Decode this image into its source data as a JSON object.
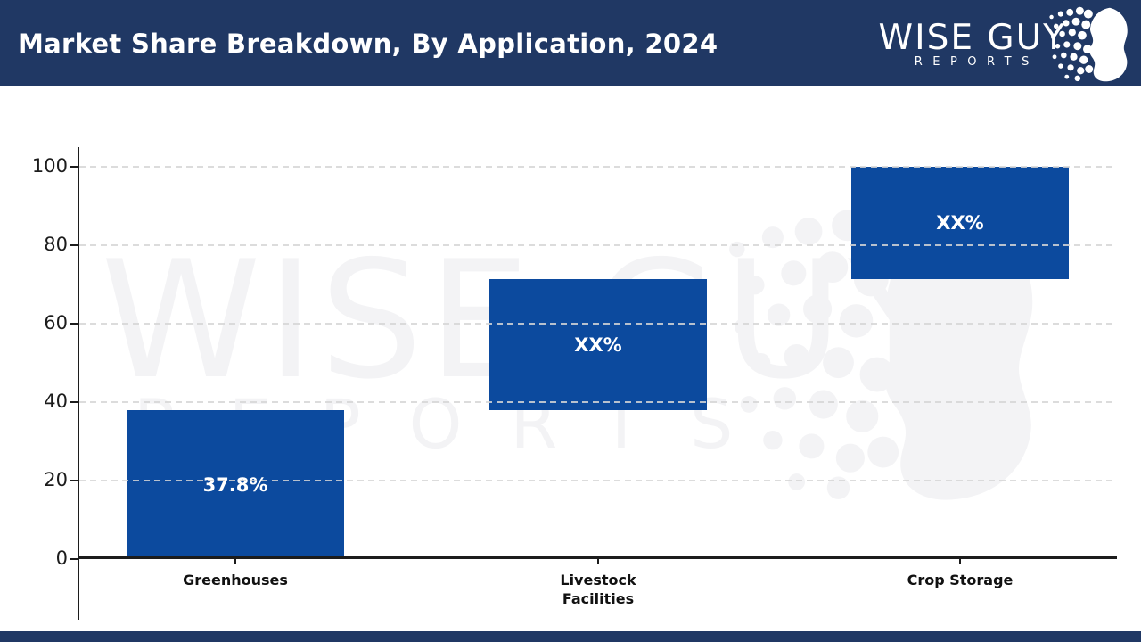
{
  "header": {
    "title": "Market Share Breakdown, By Application, 2024",
    "background_color": "#203864",
    "logo": {
      "line1": "WISE GUY",
      "line2": "REPORTS"
    }
  },
  "watermark": {
    "line1": "WISE GUY",
    "line2": "REPORTS"
  },
  "colors": {
    "header_navy": "#203864",
    "bar_blue": "#0C4A9E",
    "gridline": "#d6d6d6",
    "axis": "#1c1c1c",
    "watermark": "#f3f3f5",
    "bar_label_text": "#ffffff"
  },
  "chart_data": {
    "type": "bar",
    "subtype": "waterfall",
    "title": "Market Share Breakdown, By Application, 2024",
    "categories": [
      "Greenhouses",
      "Livestock\nFacilities",
      "Crop Storage"
    ],
    "segments": [
      {
        "category": "Greenhouses",
        "start": 0,
        "end": 37.8,
        "value": 37.8,
        "label": "37.8%"
      },
      {
        "category": "Livestock Facilities",
        "start": 37.8,
        "end": 71.3,
        "value": 33.5,
        "label": "XX%"
      },
      {
        "category": "Crop Storage",
        "start": 71.3,
        "end": 100,
        "value": 28.7,
        "label": "XX%"
      }
    ],
    "displayed_labels": [
      "37.8%",
      "XX%",
      "XX%"
    ],
    "values_approx": [
      37.8,
      33.5,
      28.7
    ],
    "xlabel": "",
    "ylabel": "",
    "yticks": [
      0,
      20,
      40,
      60,
      80,
      100
    ],
    "ylim": [
      0,
      100
    ],
    "grid": "horizontal dashed, drawn over bars",
    "legend": "none",
    "bar_color": "#0C4A9E",
    "label_color": "#ffffff"
  }
}
